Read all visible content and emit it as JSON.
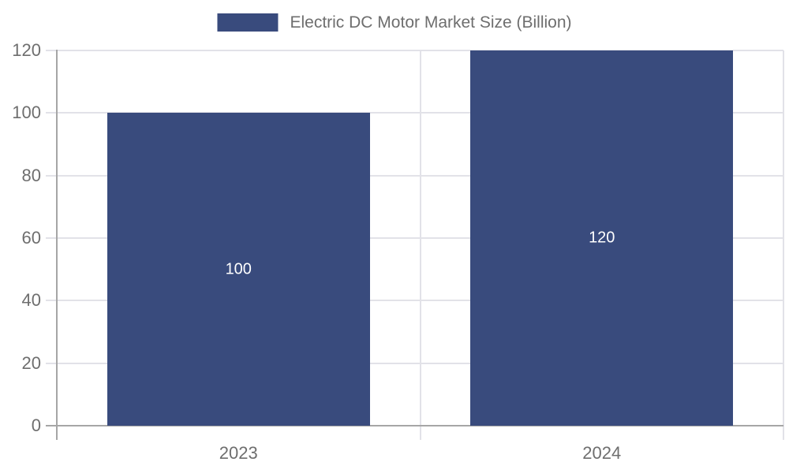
{
  "legend": {
    "label": "Electric DC Motor Market Size (Billion)"
  },
  "chart_data": {
    "type": "bar",
    "title": "Electric DC Motor Market Size (Billion)",
    "categories": [
      "2023",
      "2024"
    ],
    "series": [
      {
        "name": "Electric DC Motor Market Size (Billion)",
        "values": [
          100,
          120
        ]
      }
    ],
    "bar_value_labels": [
      "100",
      "120"
    ],
    "xlabel": "",
    "ylabel": "",
    "ylim": [
      0,
      120
    ],
    "yticks": [
      0,
      20,
      40,
      60,
      80,
      100,
      120
    ],
    "grid": true,
    "legend_position": "top-center",
    "colors": {
      "bar": "#394b7d",
      "bar_value_text": "#ffffff",
      "tick_label": "#6e6e6e",
      "legend_text": "#6e6e6e",
      "gridline": "#e2e2e8",
      "axis": "#a6a6a6",
      "background": "#ffffff"
    }
  }
}
